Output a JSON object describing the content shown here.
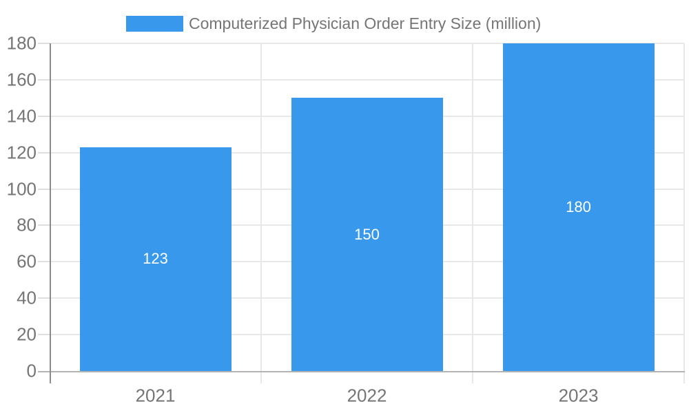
{
  "chart_data": {
    "type": "bar",
    "title": "Computerized Physician Order Entry Size (million)",
    "categories": [
      "2021",
      "2022",
      "2023"
    ],
    "series": [
      {
        "name": "Computerized Physician Order Entry Size (million)",
        "values": [
          123,
          150,
          180
        ]
      }
    ],
    "data_labels": [
      "123",
      "150",
      "180"
    ],
    "xlabel": "",
    "ylabel": "",
    "ylim": [
      0,
      180
    ],
    "yticks": [
      0,
      20,
      40,
      60,
      80,
      100,
      120,
      140,
      160,
      180
    ],
    "grid": "on",
    "legend_position": "top",
    "colors": {
      "bar": "#3899EC",
      "bar_label_text": "#FFFFFF",
      "axis_text": "#757575",
      "gridline": "#E8E8E8",
      "tick": "#DEDEDE",
      "y_axis_line": "#8A8A8A",
      "x_axis_line": "#B3B3B3"
    }
  }
}
